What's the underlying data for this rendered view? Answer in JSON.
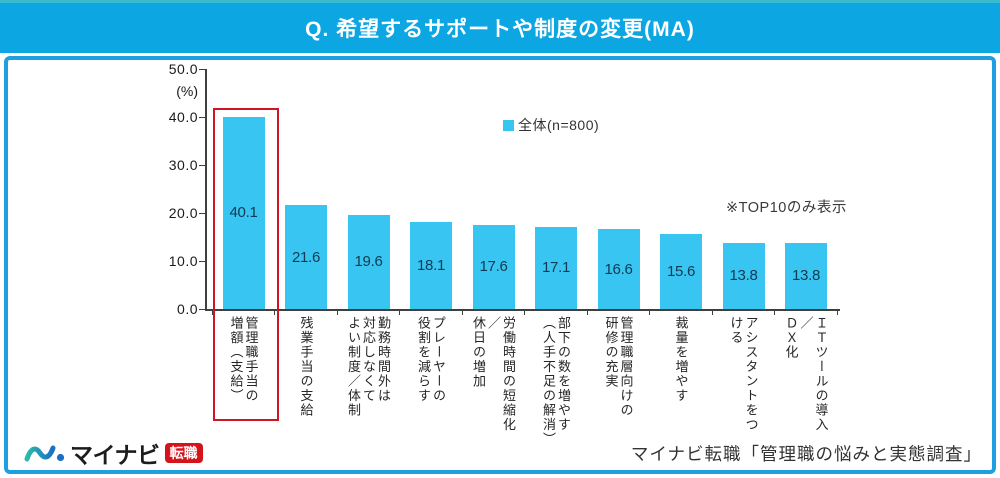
{
  "header": {
    "title": "Q. 希望するサポートや制度の変更(MA)"
  },
  "legend": {
    "label": "全体(n=800)"
  },
  "note": "※TOP10のみ表示",
  "chart_data": {
    "type": "bar",
    "title": "Q. 希望するサポートや制度の変更(MA)",
    "unit_label": "(%)",
    "ylim": [
      0,
      50
    ],
    "yticks": [
      0,
      10,
      20,
      30,
      40,
      50
    ],
    "ytick_labels": [
      "0.0",
      "10.0",
      "20.0",
      "30.0",
      "40.0",
      "50.0"
    ],
    "grid": false,
    "legend_entries": [
      "全体(n=800)"
    ],
    "legend_position": "top-center",
    "annotation": "※TOP10のみ表示",
    "categories": [
      "管理職手当の\n増額（支給）",
      "残業手当の支給",
      "勤務時間外は\n対応しなくて\nよい制度／体制",
      "プレーヤーの\n役割を減らす",
      "労働時間の短縮化／\n休日の増加",
      "部下の数を増やす\n（人手不足の解消）",
      "管理職層向けの\n研修の充実",
      "裁量を増やす",
      "アシスタントをつける",
      "ＩＴツールの導入／\nＤＸ化"
    ],
    "values": [
      40.1,
      21.6,
      19.6,
      18.1,
      17.6,
      17.1,
      16.6,
      15.6,
      13.8,
      13.8
    ],
    "value_labels": [
      "40.1",
      "21.6",
      "19.6",
      "18.1",
      "17.6",
      "17.1",
      "16.6",
      "15.6",
      "13.8",
      "13.8"
    ],
    "highlight_index": 0
  },
  "footer": {
    "logo": {
      "brand": "マイナビ",
      "badge": "転職"
    },
    "source": "マイナビ転職「管理職の悩みと実態調査」"
  },
  "colors": {
    "header_bg": "#0ca6e3",
    "top_strip": "#38bccd",
    "bar": "#38c5f1",
    "frame_border": "#1f9fdf",
    "highlight_red": "#cf1423",
    "value_text": "#123a52",
    "logo_red": "#d6121b",
    "logo_wave_start": "#2fb9a8",
    "logo_wave_end": "#1a6fc7"
  }
}
